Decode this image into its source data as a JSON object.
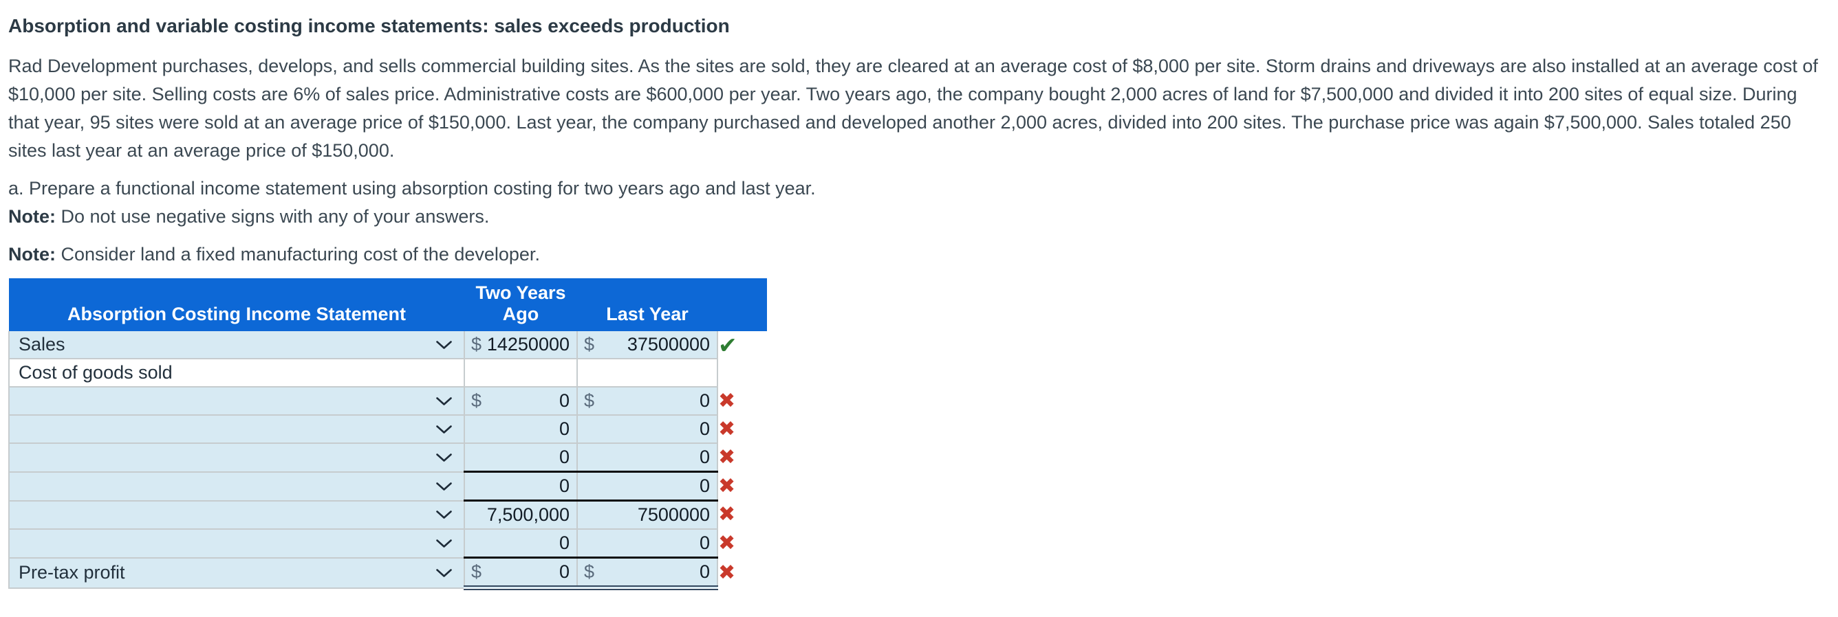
{
  "page": {
    "title": "Absorption and variable costing income statements: sales exceeds production",
    "intro": "Rad Development purchases, develops, and sells commercial building sites. As the sites are sold, they are cleared at an average cost of $8,000 per site. Storm drains and driveways are also installed at an average cost of $10,000 per site. Selling costs are 6% of sales price. Administrative costs are $600,000 per year. Two years ago, the company bought 2,000 acres of land for $7,500,000 and divided it into 200 sites of equal size. During that year, 95 sites were sold at an average price of $150,000. Last year, the company purchased and developed another 2,000 acres, divided into 200 sites. The purchase price was again $7,500,000. Sales totaled 250 sites last year at an average price of $150,000.",
    "instruction_a": "a. Prepare a functional income statement using absorption costing for two years ago and last year.",
    "note1_label": "Note:",
    "note1_text": "Do not use negative signs with any of your answers.",
    "note2_label": "Note:",
    "note2_text": "Consider land a fixed manufacturing cost of the developer."
  },
  "icons": {
    "check": "✔",
    "x": "✖",
    "dropdown_chevron": "chevron-down"
  },
  "colors": {
    "header_blue": "#0d68d6",
    "row_light_blue": "#d7eaf3",
    "grid_grey": "#c6ccce",
    "subtotal_line_black": "#0a0a0a",
    "double_rule_navy": "#33475e",
    "correct_green": "#2e7d32",
    "incorrect_red": "#c9392b"
  },
  "table": {
    "headers": [
      "Absorption Costing Income Statement",
      "Two Years Ago",
      "Last Year"
    ],
    "rows": [
      {
        "label": "Sales",
        "dropdown": true,
        "white": false,
        "top_line": false,
        "bottom_double": false,
        "status": "correct",
        "cells": [
          {
            "dollar": "$",
            "value": "14250000"
          },
          {
            "dollar": "$",
            "value": "37500000"
          }
        ]
      },
      {
        "label": "Cost of goods sold",
        "dropdown": false,
        "white": true,
        "top_line": false,
        "bottom_double": false,
        "status": "none",
        "cells": [
          {
            "dollar": "",
            "value": ""
          },
          {
            "dollar": "",
            "value": ""
          }
        ]
      },
      {
        "label": "",
        "dropdown": true,
        "white": false,
        "top_line": false,
        "bottom_double": false,
        "status": "incorrect",
        "cells": [
          {
            "dollar": "$",
            "value": "0"
          },
          {
            "dollar": "$",
            "value": "0"
          }
        ]
      },
      {
        "label": "",
        "dropdown": true,
        "white": false,
        "top_line": false,
        "bottom_double": false,
        "status": "incorrect",
        "cells": [
          {
            "dollar": "",
            "value": "0"
          },
          {
            "dollar": "",
            "value": "0"
          }
        ]
      },
      {
        "label": "",
        "dropdown": true,
        "white": false,
        "top_line": false,
        "bottom_double": false,
        "status": "incorrect",
        "cells": [
          {
            "dollar": "",
            "value": "0"
          },
          {
            "dollar": "",
            "value": "0"
          }
        ]
      },
      {
        "label": "",
        "dropdown": true,
        "white": false,
        "top_line": true,
        "bottom_double": false,
        "status": "incorrect",
        "cells": [
          {
            "dollar": "",
            "value": "0"
          },
          {
            "dollar": "",
            "value": "0"
          }
        ]
      },
      {
        "label": "",
        "dropdown": true,
        "white": false,
        "top_line": true,
        "bottom_double": false,
        "status": "incorrect",
        "cells": [
          {
            "dollar": "",
            "value": "7,500,000"
          },
          {
            "dollar": "",
            "value": "7500000"
          }
        ]
      },
      {
        "label": "",
        "dropdown": true,
        "white": false,
        "top_line": false,
        "bottom_double": false,
        "status": "incorrect",
        "cells": [
          {
            "dollar": "",
            "value": "0"
          },
          {
            "dollar": "",
            "value": "0"
          }
        ]
      },
      {
        "label": "Pre-tax profit",
        "dropdown": true,
        "white": false,
        "top_line": true,
        "bottom_double": true,
        "status": "incorrect",
        "cells": [
          {
            "dollar": "$",
            "value": "0"
          },
          {
            "dollar": "$",
            "value": "0"
          }
        ]
      }
    ]
  }
}
